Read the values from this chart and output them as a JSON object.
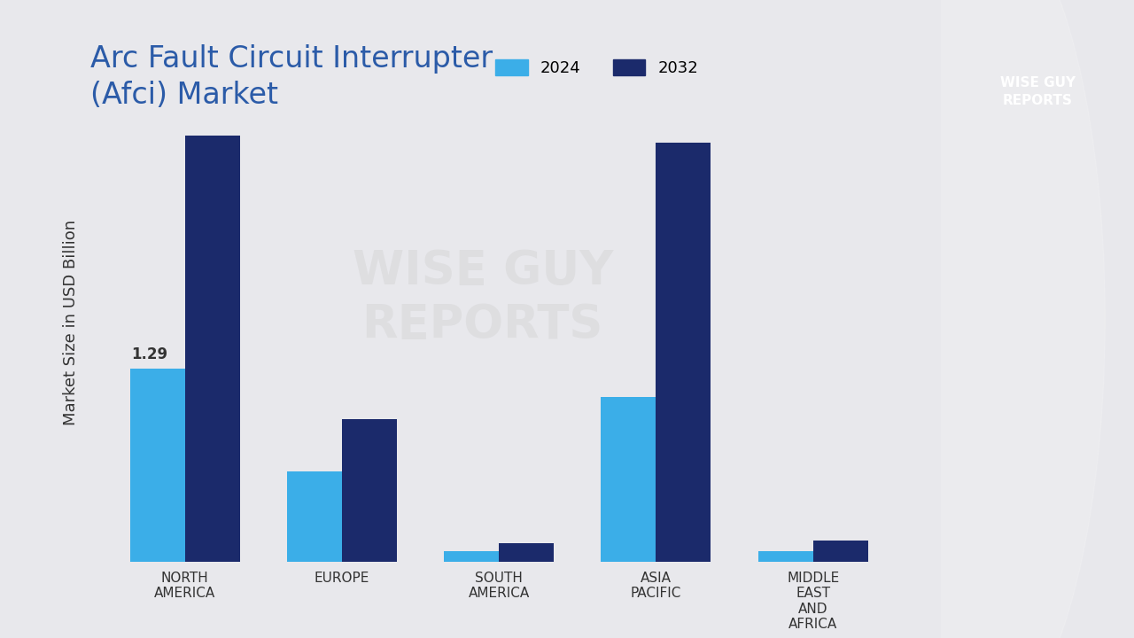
{
  "title": "Arc Fault Circuit Interrupter\n(Afci) Market",
  "ylabel": "Market Size in USD Billion",
  "categories": [
    "NORTH\nAMERICA",
    "EUROPE",
    "SOUTH\nAMERICA",
    "ASIA\nPACIFIC",
    "MIDDLE\nEAST\nAND\nAFRICA"
  ],
  "values_2024": [
    1.29,
    0.6,
    0.07,
    1.1,
    0.07
  ],
  "values_2032": [
    2.85,
    0.95,
    0.12,
    2.8,
    0.14
  ],
  "color_2024": "#3BAEE8",
  "color_2032": "#1B2A6B",
  "label_2024": "2024",
  "label_2032": "2032",
  "annotation_value": "1.29",
  "annotation_bar": 0,
  "bg_color": "#E8E8EC",
  "title_color": "#2B5BA8",
  "ylabel_color": "#333333",
  "bar_label_color": "#333333",
  "right_panel_color": "#1B2A6B",
  "ylim": [
    0,
    3.2
  ],
  "bar_width": 0.35,
  "title_fontsize": 24,
  "ylabel_fontsize": 13,
  "tick_fontsize": 11,
  "legend_fontsize": 13
}
